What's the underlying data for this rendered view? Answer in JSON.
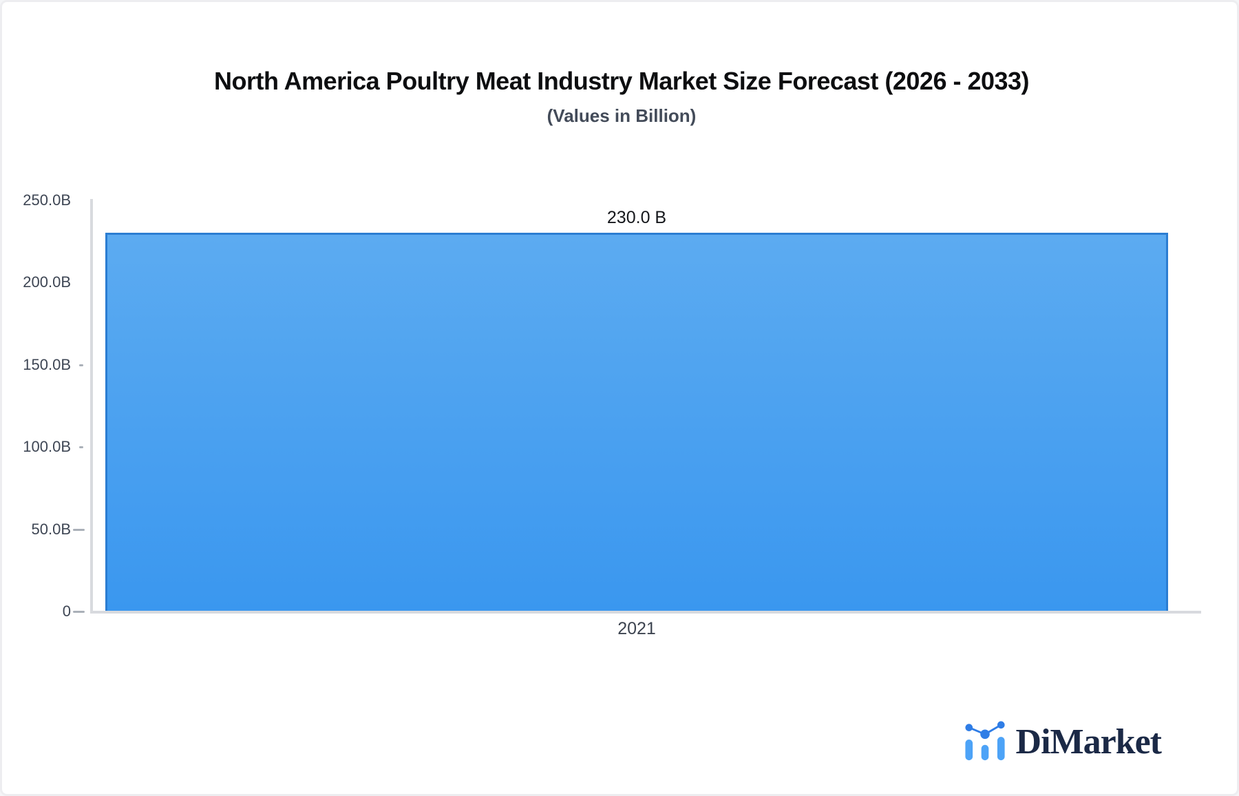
{
  "header": {
    "title": "North America Poultry Meat Industry Market Size Forecast (2026 - 2033)",
    "subtitle": "(Values in Billion)"
  },
  "chart_data": {
    "type": "bar",
    "title": "North America Poultry Meat Industry Market Size Forecast (2026 - 2033)",
    "subtitle": "(Values in Billion)",
    "categories": [
      "2021"
    ],
    "values": [
      230.0
    ],
    "value_labels": [
      "230.0 B"
    ],
    "unit": "Billion",
    "xlabel": "",
    "ylabel": "",
    "ylim": [
      0,
      250
    ],
    "y_ticks": [
      "250.0B",
      "200.0B",
      "150.0B",
      "100.0B",
      "50.0B",
      "0"
    ],
    "grid": false,
    "legend": "none",
    "colors": {
      "bar_gradient_top": "#5cabf1",
      "bar_gradient_bottom": "#3a97ef",
      "bar_border": "#2b7dd2",
      "axis_line": "#d8dade",
      "tick_label": "#3e4654"
    }
  },
  "footer": {
    "logo_text": "DiMarket",
    "logo_icon": "bar-chart-logo-icon",
    "logo_text_color": "#1b2946",
    "logo_icon_bar_color": "#4da3f7",
    "logo_icon_dot_color": "#2f7de6"
  }
}
